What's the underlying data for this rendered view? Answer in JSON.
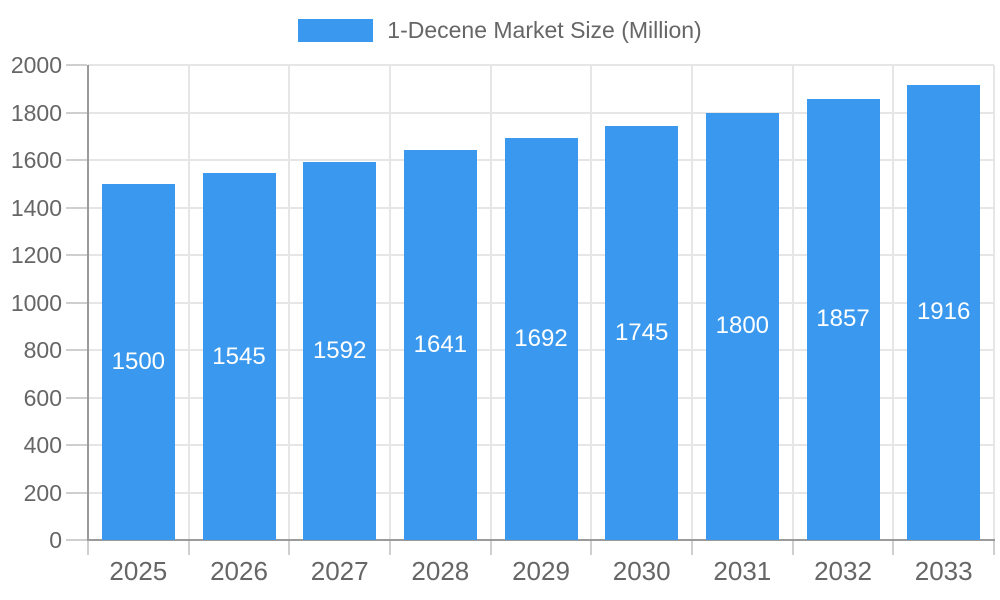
{
  "legend": {
    "label": "1-Decene Market Size (Million)"
  },
  "chart_data": {
    "type": "bar",
    "title": "1-Decene Market Size (Million)",
    "categories": [
      "2025",
      "2026",
      "2027",
      "2028",
      "2029",
      "2030",
      "2031",
      "2032",
      "2033"
    ],
    "values": [
      1500,
      1545,
      1592,
      1641,
      1692,
      1745,
      1800,
      1857,
      1916
    ],
    "series": [
      {
        "name": "1-Decene Market Size (Million)",
        "values": [
          1500,
          1545,
          1592,
          1641,
          1692,
          1745,
          1800,
          1857,
          1916
        ]
      }
    ],
    "xlabel": "",
    "ylabel": "",
    "ylim": [
      0,
      2000
    ],
    "ytick_step": 200,
    "ytick_labels": [
      "0",
      "200",
      "400",
      "600",
      "800",
      "1000",
      "1200",
      "1400",
      "1600",
      "1800",
      "2000"
    ],
    "grid": true,
    "legend_position": "top",
    "value_label_position": "inside-center",
    "colors": {
      "bar": "#3a99ee",
      "grid": "#e6e6e6",
      "axis": "#9b9b9b",
      "tick": "#cfcfcf",
      "tick_text": "#666666",
      "value_label_text": "#ffffff",
      "background": "#ffffff"
    }
  }
}
